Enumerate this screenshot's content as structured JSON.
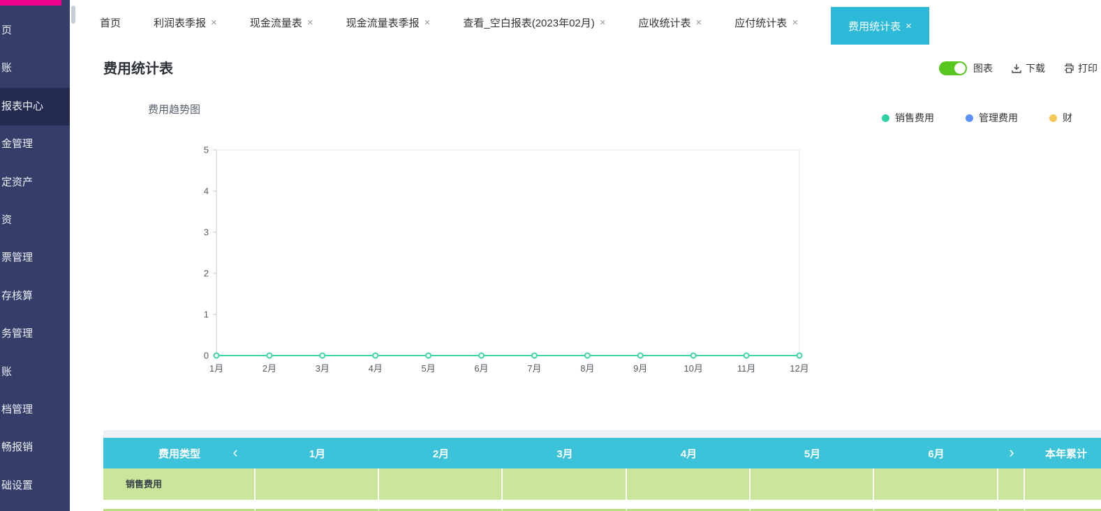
{
  "theme": {
    "active_tab": "#2db9d8",
    "table_header": "#3cc3da",
    "row_highlight": "#c9e69b",
    "row_border": "#b9dd82",
    "toggle_on": "#57c71f",
    "sidebar_bg": "#343e68",
    "sidebar_active": "#232c50",
    "accent_strip": "#ec008c"
  },
  "sidebar": {
    "items": [
      {
        "label": "页",
        "active": false
      },
      {
        "label": "账",
        "active": false
      },
      {
        "label": "报表中心",
        "active": true
      },
      {
        "label": "金管理",
        "active": false
      },
      {
        "label": "定资产",
        "active": false
      },
      {
        "label": "资",
        "active": false
      },
      {
        "label": "票管理",
        "active": false
      },
      {
        "label": "存核算",
        "active": false
      },
      {
        "label": "务管理",
        "active": false
      },
      {
        "label": "账",
        "active": false
      },
      {
        "label": "档管理",
        "active": false
      },
      {
        "label": "畅报销",
        "active": false
      },
      {
        "label": "础设置",
        "active": false
      }
    ]
  },
  "tabs": [
    {
      "label": "首页",
      "closable": false,
      "active": false
    },
    {
      "label": "利润表季报",
      "closable": true,
      "active": false
    },
    {
      "label": "现金流量表",
      "closable": true,
      "active": false
    },
    {
      "label": "现金流量表季报",
      "closable": true,
      "active": false
    },
    {
      "label": "查看_空白报表(2023年02月)",
      "closable": true,
      "active": false
    },
    {
      "label": "应收统计表",
      "closable": true,
      "active": false
    },
    {
      "label": "应付统计表",
      "closable": true,
      "active": false
    },
    {
      "label": "费用统计表",
      "closable": true,
      "active": true
    }
  ],
  "page": {
    "title": "费用统计表"
  },
  "toolbar": {
    "toggle_label": "图表",
    "toggle_on": true,
    "download_label": "下载",
    "print_label": "打印"
  },
  "chart_data": {
    "type": "line",
    "title": "费用趋势图",
    "x": [
      "1月",
      "2月",
      "3月",
      "4月",
      "5月",
      "6月",
      "7月",
      "8月",
      "9月",
      "10月",
      "11月",
      "12月"
    ],
    "ylim": [
      0,
      5
    ],
    "yticks": [
      0,
      1,
      2,
      3,
      4,
      5
    ],
    "grid": false,
    "legend_position": "top-right",
    "legend": [
      {
        "label": "销售费用",
        "color": "#2ed0a4"
      },
      {
        "label": "管理费用",
        "color": "#5b8ff9"
      },
      {
        "label": "财",
        "color": "#f5c855"
      }
    ],
    "series": [
      {
        "name": "销售费用",
        "color": "#3fd5a8",
        "values": [
          0,
          0,
          0,
          0,
          0,
          0,
          0,
          0,
          0,
          0,
          0,
          0
        ]
      }
    ]
  },
  "table": {
    "header": {
      "type_col": "费用类型",
      "months": [
        "1月",
        "2月",
        "3月",
        "4月",
        "5月",
        "6月"
      ],
      "total_col": "本年累计",
      "prev_icon": "‹",
      "next_icon": "›"
    },
    "rows": [
      {
        "label": "销售费用",
        "values": [
          "",
          "",
          "",
          "",
          "",
          ""
        ],
        "total": ""
      },
      {
        "label": "",
        "values": [
          "",
          "",
          "",
          "",
          "",
          ""
        ],
        "total": ""
      }
    ]
  }
}
